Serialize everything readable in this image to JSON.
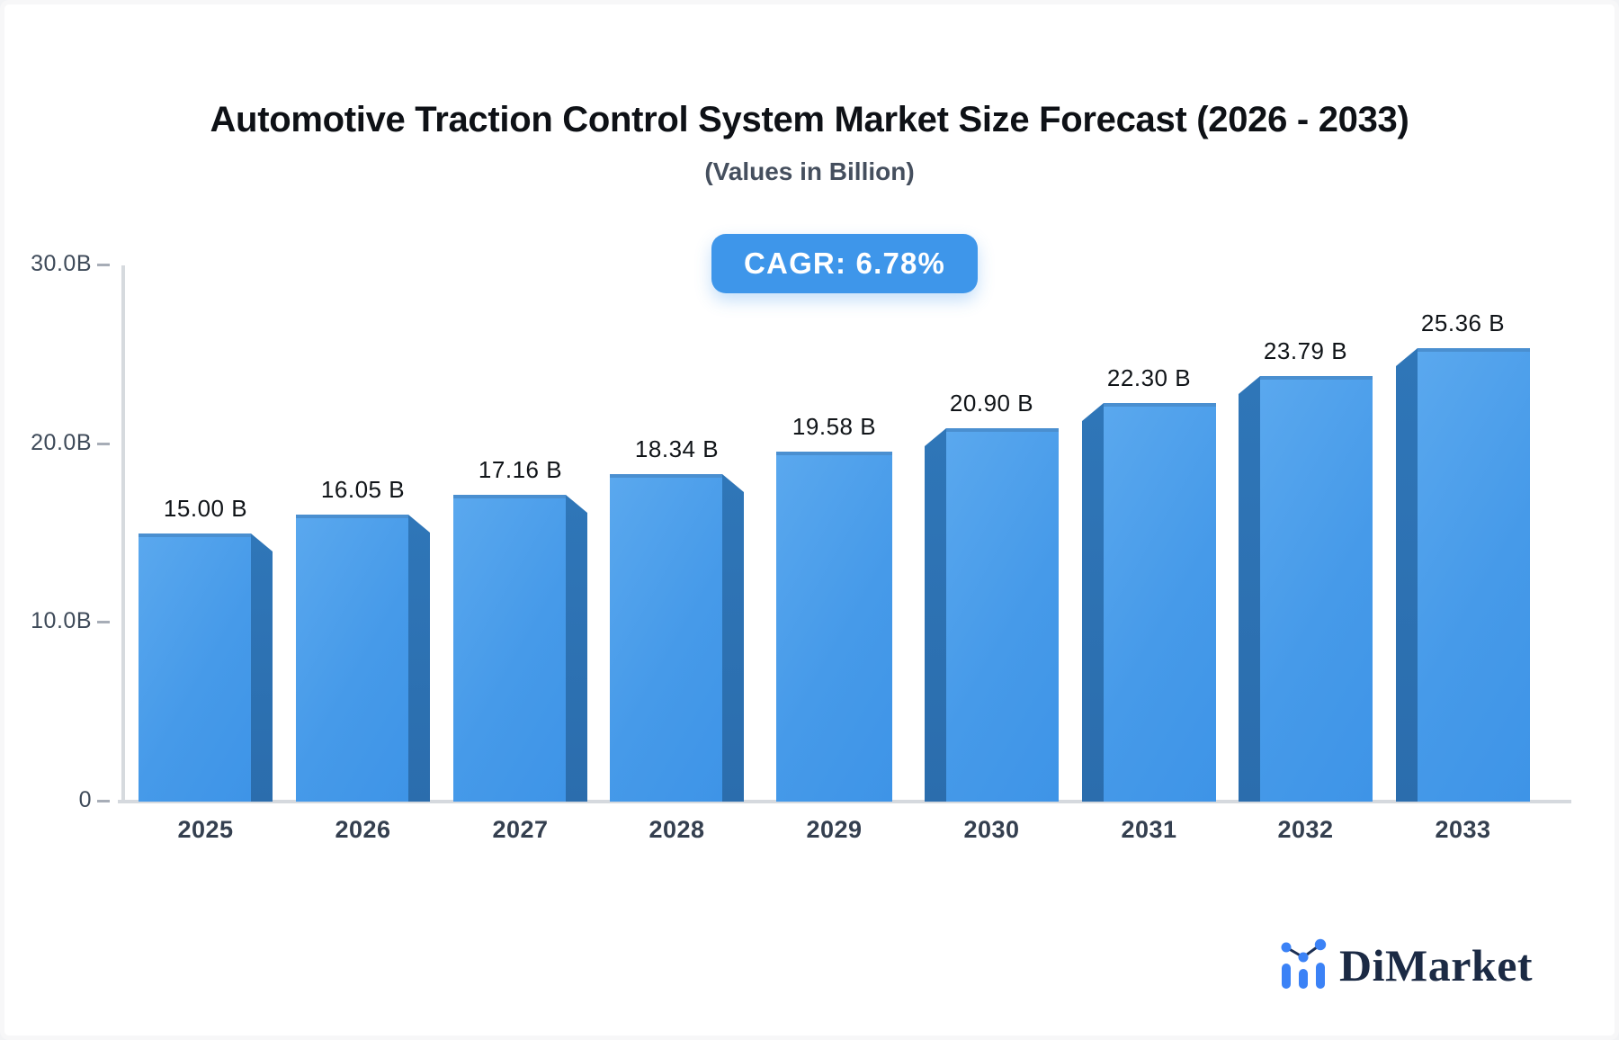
{
  "header": {
    "title": "Automotive Traction Control System Market Size Forecast (2026 - 2033)",
    "subtitle": "(Values in Billion)"
  },
  "badge": {
    "label": "CAGR: 6.78%"
  },
  "chart_data": {
    "type": "bar",
    "title": "Automotive Traction Control System Market Size Forecast (2026 - 2033)",
    "subtitle": "(Values in Billion)",
    "cagr_percent": 6.78,
    "categories": [
      "2025",
      "2026",
      "2027",
      "2028",
      "2029",
      "2030",
      "2031",
      "2032",
      "2033"
    ],
    "values": [
      15.0,
      16.05,
      17.16,
      18.34,
      19.58,
      20.9,
      22.3,
      23.79,
      25.36
    ],
    "value_labels": [
      "15.00 B",
      "16.05 B",
      "17.16 B",
      "18.34 B",
      "19.58 B",
      "20.90 B",
      "22.30 B",
      "23.79 B",
      "25.36 B"
    ],
    "xlabel": "",
    "ylabel": "",
    "ylim": [
      0,
      30
    ],
    "yticks": [
      {
        "label": "30.0B",
        "value": 30
      },
      {
        "label": "20.0B",
        "value": 20
      },
      {
        "label": "10.0B",
        "value": 10
      },
      {
        "label": "0",
        "value": 0
      }
    ],
    "grid": false,
    "legend_position": "none",
    "colors": {
      "bar_face": "#469ae9",
      "bar_face_light": "#5aa8ee",
      "bar_side": "#2e74b5",
      "bar_top_edge": "#4a8fd0",
      "axis_line": "#d6dade",
      "tick_mark": "#a7adb7",
      "tick_label": "#3e4a59",
      "year_label": "#343f4f",
      "value_label": "#101418",
      "badge_bg": "#3e96ea",
      "badge_text": "#ffffff"
    }
  },
  "logo": {
    "name": "DiMarket",
    "navy": "#1b2a44",
    "blue": "#3b82f6"
  }
}
